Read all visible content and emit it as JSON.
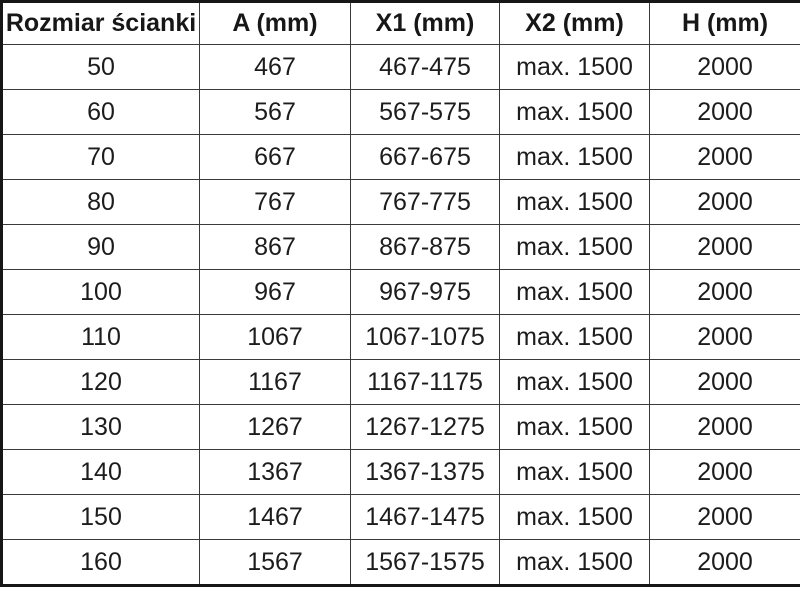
{
  "chart_data": {
    "type": "table",
    "title": "",
    "columns": [
      "Rozmiar ścianki",
      "A (mm)",
      "X1 (mm)",
      "X2 (mm)",
      "H (mm)"
    ],
    "rows": [
      [
        "50",
        "467",
        "467-475",
        "max. 1500",
        "2000"
      ],
      [
        "60",
        "567",
        "567-575",
        "max. 1500",
        "2000"
      ],
      [
        "70",
        "667",
        "667-675",
        "max. 1500",
        "2000"
      ],
      [
        "80",
        "767",
        "767-775",
        "max. 1500",
        "2000"
      ],
      [
        "90",
        "867",
        "867-875",
        "max. 1500",
        "2000"
      ],
      [
        "100",
        "967",
        "967-975",
        "max. 1500",
        "2000"
      ],
      [
        "110",
        "1067",
        "1067-1075",
        "max. 1500",
        "2000"
      ],
      [
        "120",
        "1167",
        "1167-1175",
        "max. 1500",
        "2000"
      ],
      [
        "130",
        "1267",
        "1267-1275",
        "max. 1500",
        "2000"
      ],
      [
        "140",
        "1367",
        "1367-1375",
        "max. 1500",
        "2000"
      ],
      [
        "150",
        "1467",
        "1467-1475",
        "max. 1500",
        "2000"
      ],
      [
        "160",
        "1567",
        "1567-1575",
        "max. 1500",
        "2000"
      ]
    ]
  },
  "colors": {
    "background": "#ffffff",
    "text": "#1c1c1c",
    "border_outer": "#161616",
    "border_inner": "#3a3a3a"
  }
}
